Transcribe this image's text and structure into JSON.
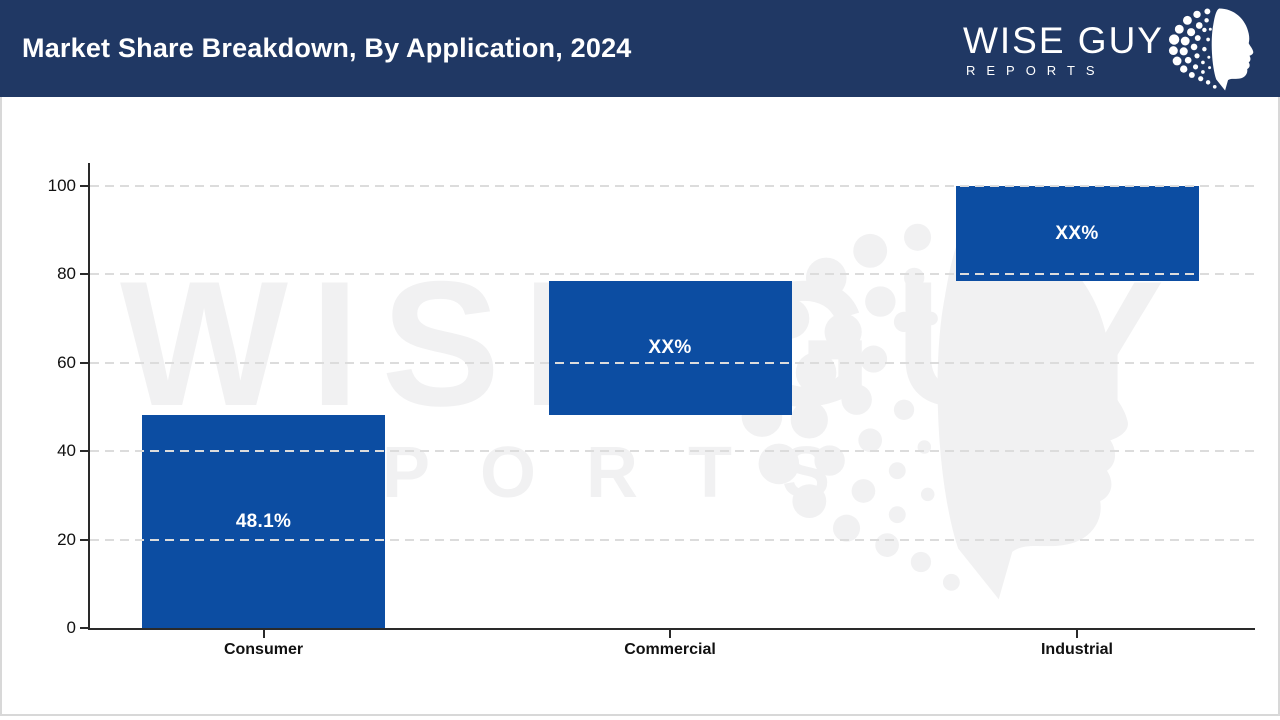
{
  "header": {
    "title": "Market Share Breakdown, By Application, 2024",
    "logo": {
      "wordmark": "WISE GUY",
      "subtext": "REPORTS"
    }
  },
  "watermark": {
    "line1": "WISE GUY",
    "line2": "REPORTS"
  },
  "colors": {
    "header_bg": "#203864",
    "bar": "#0c4da2",
    "grid": "#dcdcdc",
    "axis": "#2a2a2a",
    "watermark": "#f1f1f2",
    "border": "#d8d8d8"
  },
  "chart_data": {
    "type": "bar",
    "subtype": "floating-waterfall",
    "title": "Market Share Breakdown, By Application, 2024",
    "categories": [
      "Consumer",
      "Commercial",
      "Industrial"
    ],
    "series": [
      {
        "name": "Market Share %",
        "segments": [
          {
            "category": "Consumer",
            "start": 0,
            "end": 48.1,
            "label": "48.1%"
          },
          {
            "category": "Commercial",
            "start": 48.1,
            "end": 78.4,
            "label": "XX%"
          },
          {
            "category": "Industrial",
            "start": 78.4,
            "end": 100,
            "label": "XX%"
          }
        ]
      }
    ],
    "xlabel": "",
    "ylabel": "",
    "yticks": [
      0,
      20,
      40,
      60,
      80,
      100
    ],
    "ylim": [
      0,
      100
    ],
    "grid": "horizontal-dashed",
    "legend": "none",
    "bar_color": "#0c4da2",
    "value_label_color": "#ffffff"
  }
}
